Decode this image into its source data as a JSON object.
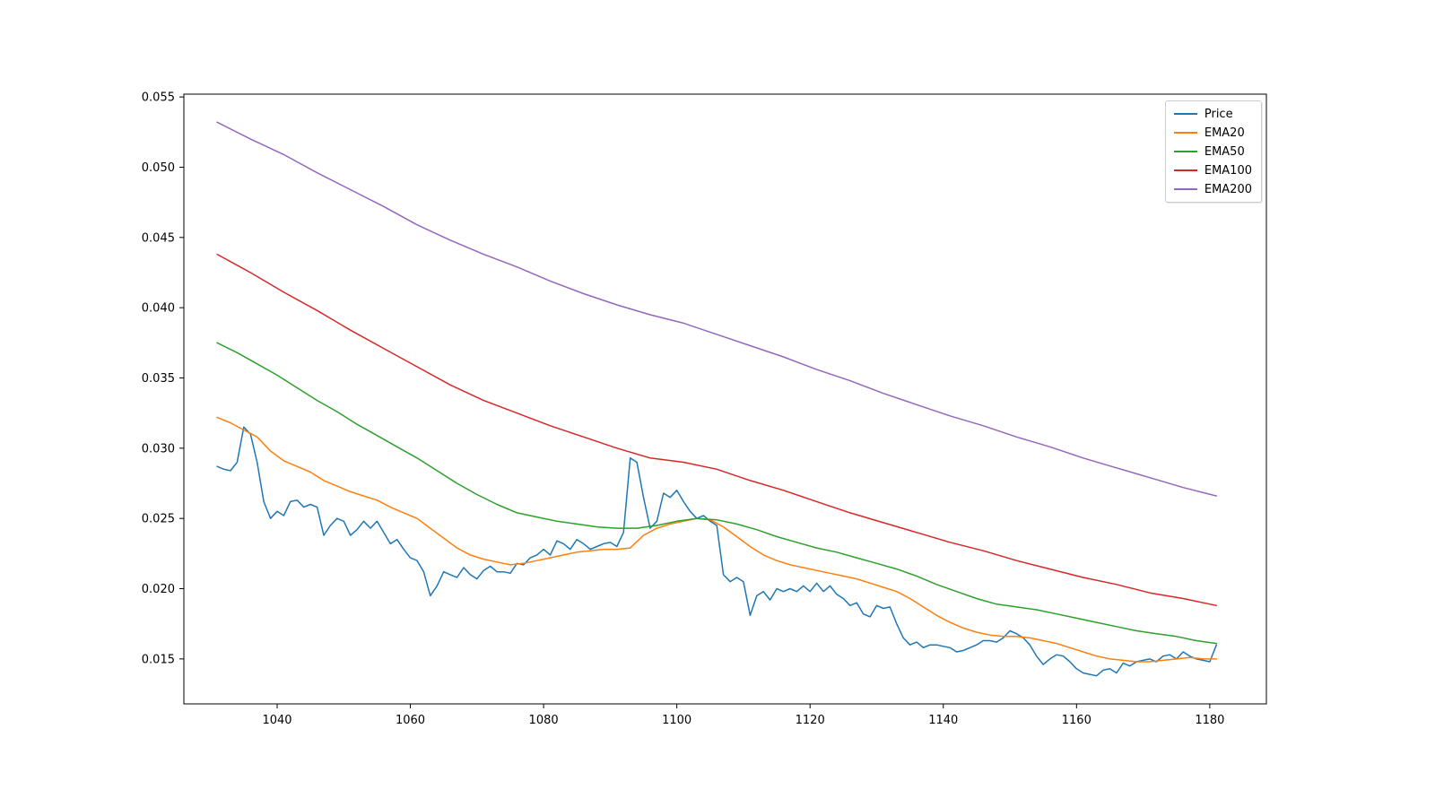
{
  "figure": {
    "background": "#ffffff"
  },
  "chart_data": {
    "type": "line",
    "title": "",
    "xlabel": "",
    "ylabel": "",
    "grid": false,
    "xlim": [
      1026,
      1188.5
    ],
    "ylim": [
      0.0118,
      0.0552
    ],
    "x_ticks": [
      1040,
      1060,
      1080,
      1100,
      1120,
      1140,
      1160,
      1180
    ],
    "y_ticks": [
      0.015,
      0.02,
      0.025,
      0.03,
      0.035,
      0.04,
      0.045,
      0.05,
      0.055
    ],
    "y_tick_decimals": 3,
    "legend": {
      "position": "upper right",
      "entries": [
        "Price",
        "EMA20",
        "EMA50",
        "EMA100",
        "EMA200"
      ]
    },
    "series": [
      {
        "name": "Price",
        "color": "#1f77b4",
        "x": [
          1031,
          1032,
          1033,
          1034,
          1035,
          1036,
          1037,
          1038,
          1039,
          1040,
          1041,
          1042,
          1043,
          1044,
          1045,
          1046,
          1047,
          1048,
          1049,
          1050,
          1051,
          1052,
          1053,
          1054,
          1055,
          1056,
          1057,
          1058,
          1059,
          1060,
          1061,
          1062,
          1063,
          1064,
          1065,
          1066,
          1067,
          1068,
          1069,
          1070,
          1071,
          1072,
          1073,
          1074,
          1075,
          1076,
          1077,
          1078,
          1079,
          1080,
          1081,
          1082,
          1083,
          1084,
          1085,
          1086,
          1087,
          1088,
          1089,
          1090,
          1091,
          1092,
          1093,
          1094,
          1095,
          1096,
          1097,
          1098,
          1099,
          1100,
          1101,
          1102,
          1103,
          1104,
          1105,
          1106,
          1107,
          1108,
          1109,
          1110,
          1111,
          1112,
          1113,
          1114,
          1115,
          1116,
          1117,
          1118,
          1119,
          1120,
          1121,
          1122,
          1123,
          1124,
          1125,
          1126,
          1127,
          1128,
          1129,
          1130,
          1131,
          1132,
          1133,
          1134,
          1135,
          1136,
          1137,
          1138,
          1139,
          1140,
          1141,
          1142,
          1143,
          1144,
          1145,
          1146,
          1147,
          1148,
          1149,
          1150,
          1151,
          1152,
          1153,
          1154,
          1155,
          1156,
          1157,
          1158,
          1159,
          1160,
          1161,
          1162,
          1163,
          1164,
          1165,
          1166,
          1167,
          1168,
          1169,
          1170,
          1171,
          1172,
          1173,
          1174,
          1175,
          1176,
          1177,
          1178,
          1179,
          1180,
          1181
        ],
        "y": [
          0.0287,
          0.0285,
          0.0284,
          0.029,
          0.0315,
          0.031,
          0.029,
          0.0262,
          0.025,
          0.0255,
          0.0252,
          0.0262,
          0.0263,
          0.0258,
          0.026,
          0.0258,
          0.0238,
          0.0245,
          0.025,
          0.0248,
          0.0238,
          0.0242,
          0.0248,
          0.0243,
          0.0248,
          0.024,
          0.0232,
          0.0235,
          0.0228,
          0.0222,
          0.022,
          0.0212,
          0.0195,
          0.0202,
          0.0212,
          0.021,
          0.0208,
          0.0215,
          0.021,
          0.0207,
          0.0213,
          0.0216,
          0.0212,
          0.0212,
          0.0211,
          0.0218,
          0.0217,
          0.0222,
          0.0224,
          0.0228,
          0.0224,
          0.0234,
          0.0232,
          0.0228,
          0.0235,
          0.0232,
          0.0228,
          0.023,
          0.0232,
          0.0233,
          0.023,
          0.024,
          0.0293,
          0.029,
          0.0265,
          0.0243,
          0.0248,
          0.0268,
          0.0265,
          0.027,
          0.0262,
          0.0255,
          0.025,
          0.0252,
          0.0248,
          0.0245,
          0.021,
          0.0205,
          0.0208,
          0.0205,
          0.0181,
          0.0195,
          0.0198,
          0.0192,
          0.02,
          0.0198,
          0.02,
          0.0198,
          0.0202,
          0.0198,
          0.0204,
          0.0198,
          0.0202,
          0.0196,
          0.0193,
          0.0188,
          0.019,
          0.0182,
          0.018,
          0.0188,
          0.0186,
          0.0187,
          0.0175,
          0.0165,
          0.016,
          0.0162,
          0.0158,
          0.016,
          0.016,
          0.0159,
          0.0158,
          0.0155,
          0.0156,
          0.0158,
          0.016,
          0.0163,
          0.0163,
          0.0162,
          0.0165,
          0.017,
          0.0168,
          0.0165,
          0.016,
          0.0152,
          0.0146,
          0.015,
          0.0153,
          0.0152,
          0.0148,
          0.0143,
          0.014,
          0.0139,
          0.0138,
          0.0142,
          0.0143,
          0.014,
          0.0147,
          0.0145,
          0.0148,
          0.0149,
          0.015,
          0.0148,
          0.0152,
          0.0153,
          0.015,
          0.0155,
          0.0152,
          0.015,
          0.0149,
          0.0148,
          0.016
        ]
      },
      {
        "name": "EMA20",
        "color": "#ff7f0e",
        "x": [
          1031,
          1033,
          1035,
          1037,
          1039,
          1041,
          1043,
          1045,
          1047,
          1049,
          1051,
          1053,
          1055,
          1057,
          1059,
          1061,
          1063,
          1065,
          1067,
          1069,
          1071,
          1073,
          1075,
          1077,
          1079,
          1081,
          1083,
          1085,
          1087,
          1089,
          1091,
          1093,
          1095,
          1097,
          1099,
          1101,
          1103,
          1105,
          1107,
          1109,
          1111,
          1113,
          1115,
          1117,
          1119,
          1121,
          1123,
          1125,
          1127,
          1129,
          1131,
          1133,
          1135,
          1137,
          1139,
          1141,
          1143,
          1145,
          1147,
          1149,
          1151,
          1153,
          1155,
          1157,
          1159,
          1161,
          1163,
          1165,
          1167,
          1169,
          1171,
          1173,
          1175,
          1177,
          1179,
          1181
        ],
        "y": [
          0.0322,
          0.0318,
          0.0313,
          0.0308,
          0.0298,
          0.0291,
          0.0287,
          0.0283,
          0.0277,
          0.0273,
          0.0269,
          0.0266,
          0.0263,
          0.0258,
          0.0254,
          0.025,
          0.0243,
          0.0236,
          0.0229,
          0.0224,
          0.0221,
          0.0219,
          0.0217,
          0.0218,
          0.022,
          0.0222,
          0.0224,
          0.0226,
          0.0227,
          0.0228,
          0.0228,
          0.0229,
          0.0238,
          0.0243,
          0.0246,
          0.0248,
          0.025,
          0.0249,
          0.0244,
          0.0237,
          0.023,
          0.0224,
          0.022,
          0.0217,
          0.0215,
          0.0213,
          0.0211,
          0.0209,
          0.0207,
          0.0204,
          0.0201,
          0.0198,
          0.0193,
          0.0187,
          0.0181,
          0.0176,
          0.0172,
          0.0169,
          0.0167,
          0.0166,
          0.0166,
          0.0165,
          0.0163,
          0.0161,
          0.0158,
          0.0155,
          0.0152,
          0.015,
          0.0149,
          0.0148,
          0.0148,
          0.0149,
          0.015,
          0.0151,
          0.015,
          0.015
        ]
      },
      {
        "name": "EMA50",
        "color": "#2ca02c",
        "x": [
          1031,
          1034,
          1037,
          1040,
          1043,
          1046,
          1049,
          1052,
          1055,
          1058,
          1061,
          1064,
          1067,
          1070,
          1073,
          1076,
          1079,
          1082,
          1085,
          1088,
          1091,
          1094,
          1097,
          1100,
          1103,
          1106,
          1109,
          1112,
          1115,
          1118,
          1121,
          1124,
          1127,
          1130,
          1133,
          1136,
          1139,
          1142,
          1145,
          1148,
          1151,
          1154,
          1157,
          1160,
          1163,
          1166,
          1169,
          1172,
          1175,
          1178,
          1181
        ],
        "y": [
          0.0375,
          0.0368,
          0.036,
          0.0352,
          0.0343,
          0.0334,
          0.0326,
          0.0317,
          0.0309,
          0.0301,
          0.0293,
          0.0284,
          0.0275,
          0.0267,
          0.026,
          0.0254,
          0.0251,
          0.0248,
          0.0246,
          0.0244,
          0.0243,
          0.0243,
          0.0245,
          0.0248,
          0.025,
          0.0249,
          0.0246,
          0.0242,
          0.0237,
          0.0233,
          0.0229,
          0.0226,
          0.0222,
          0.0218,
          0.0214,
          0.0209,
          0.0203,
          0.0198,
          0.0193,
          0.0189,
          0.0187,
          0.0185,
          0.0182,
          0.0179,
          0.0176,
          0.0173,
          0.017,
          0.0168,
          0.0166,
          0.0163,
          0.0161
        ]
      },
      {
        "name": "EMA100",
        "color": "#d62728",
        "x": [
          1031,
          1036,
          1041,
          1046,
          1051,
          1056,
          1061,
          1066,
          1071,
          1076,
          1081,
          1086,
          1091,
          1096,
          1101,
          1106,
          1111,
          1116,
          1121,
          1126,
          1131,
          1136,
          1141,
          1146,
          1151,
          1156,
          1161,
          1166,
          1171,
          1176,
          1181
        ],
        "y": [
          0.0438,
          0.0425,
          0.0411,
          0.0398,
          0.0384,
          0.0371,
          0.0358,
          0.0345,
          0.0334,
          0.0325,
          0.0316,
          0.0308,
          0.03,
          0.0293,
          0.029,
          0.0285,
          0.0277,
          0.027,
          0.0262,
          0.0254,
          0.0247,
          0.024,
          0.0233,
          0.0227,
          0.022,
          0.0214,
          0.0208,
          0.0203,
          0.0197,
          0.0193,
          0.0188
        ]
      },
      {
        "name": "EMA200",
        "color": "#9467bd",
        "x": [
          1031,
          1036,
          1041,
          1046,
          1051,
          1056,
          1061,
          1066,
          1071,
          1076,
          1081,
          1086,
          1091,
          1096,
          1101,
          1106,
          1111,
          1116,
          1121,
          1126,
          1131,
          1136,
          1141,
          1146,
          1151,
          1156,
          1161,
          1166,
          1171,
          1176,
          1181
        ],
        "y": [
          0.0532,
          0.052,
          0.0509,
          0.0496,
          0.0484,
          0.0472,
          0.0459,
          0.0448,
          0.0438,
          0.0429,
          0.0419,
          0.041,
          0.0402,
          0.0395,
          0.0389,
          0.0381,
          0.0373,
          0.0365,
          0.0356,
          0.0348,
          0.0339,
          0.0331,
          0.0323,
          0.0316,
          0.0308,
          0.0301,
          0.0293,
          0.0286,
          0.0279,
          0.0272,
          0.0266
        ]
      }
    ]
  }
}
